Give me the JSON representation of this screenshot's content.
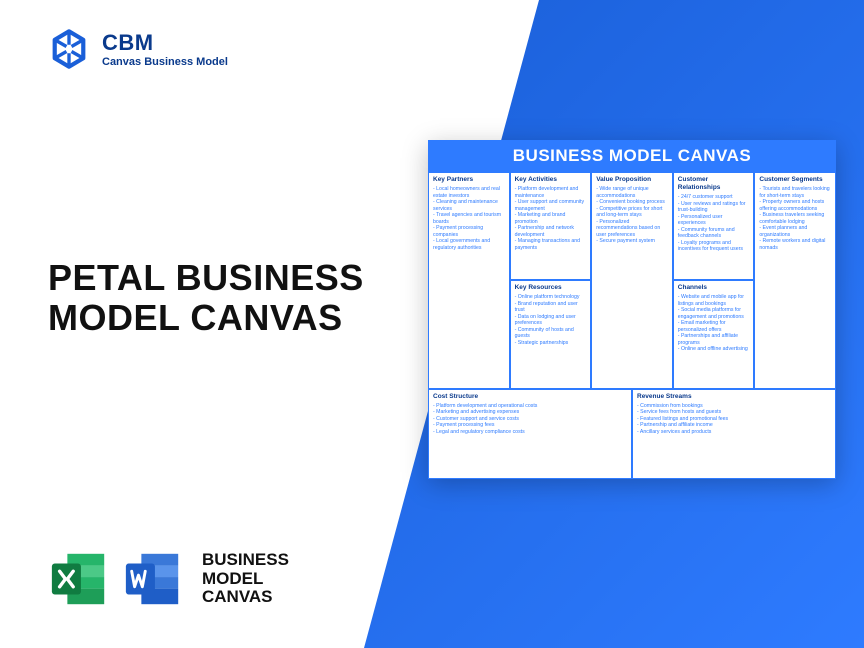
{
  "brand": {
    "abbr": "CBM",
    "sub": "Canvas Business Model",
    "logo_color": "#1a5fd8"
  },
  "title": "PETAL BUSINESS MODEL CANVAS",
  "apps": {
    "label": "BUSINESS\nMODEL\nCANVAS",
    "excel_color": "#1e9e58",
    "word_color": "#1f5ec7"
  },
  "diagonal": {
    "color1": "#1a5fd8",
    "color2": "#2e7bff"
  },
  "canvas": {
    "header": "BUSINESS MODEL CANVAS",
    "accent": "#2e7bff",
    "sections": {
      "key_partners": {
        "title": "Key Partners",
        "items": [
          "Local homeowners and real estate investors",
          "Cleaning and maintenance services",
          "Travel agencies and tourism boards",
          "Payment processing companies",
          "Local governments and regulatory authorities"
        ]
      },
      "key_activities": {
        "title": "Key Activities",
        "items": [
          "Platform development and maintenance",
          "User support and community management",
          "Marketing and brand promotion",
          "Partnership and network development",
          "Managing transactions and payments"
        ]
      },
      "key_resources": {
        "title": "Key Resources",
        "items": [
          "Online platform technology",
          "Brand reputation and user trust",
          "Data on lodging and user preferences",
          "Community of hosts and guests",
          "Strategic partnerships"
        ]
      },
      "value_proposition": {
        "title": "Value Proposition",
        "items": [
          "Wide range of unique accommodations",
          "Convenient booking process",
          "Competitive prices for short and long-term stays",
          "Personalized recommendations based on user preferences",
          "Secure payment system"
        ]
      },
      "customer_relationships": {
        "title": "Customer Relationships",
        "items": [
          "24/7 customer support",
          "User reviews and ratings for trust-building",
          "Personalized user experiences",
          "Community forums and feedback channels",
          "Loyalty programs and incentives for frequent users"
        ]
      },
      "channels": {
        "title": "Channels",
        "items": [
          "Website and mobile app for listings and bookings",
          "Social media platforms for engagement and promotions",
          "Email marketing for personalized offers",
          "Partnerships and affiliate programs",
          "Online and offline advertising"
        ]
      },
      "customer_segments": {
        "title": "Customer Segments",
        "items": [
          "Tourists and travelers looking for short-term stays",
          "Property owners and hosts offering accommodations",
          "Business travelers seeking comfortable lodging",
          "Event planners and organizations",
          "Remote workers and digital nomads"
        ]
      },
      "cost_structure": {
        "title": "Cost Structure",
        "items": [
          "Platform development and operational costs",
          "Marketing and advertising expenses",
          "Customer support and service costs",
          "Payment processing fees",
          "Legal and regulatory compliance costs"
        ]
      },
      "revenue_streams": {
        "title": "Revenue Streams",
        "items": [
          "Commission from bookings",
          "Service fees from hosts and guests",
          "Featured listings and promotional fees",
          "Partnership and affiliate income",
          "Ancillary services and products"
        ]
      }
    }
  }
}
